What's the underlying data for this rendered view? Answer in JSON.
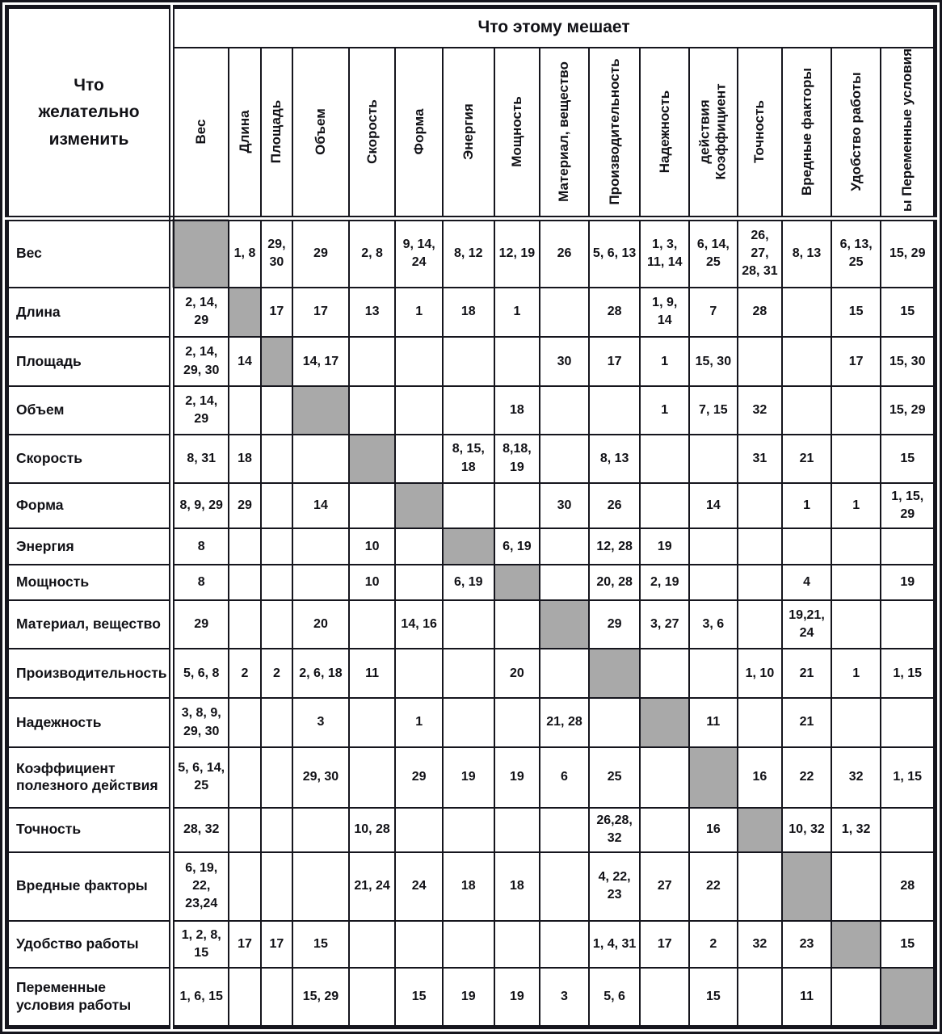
{
  "header": {
    "row_axis_title": "Что желательно изменить",
    "col_axis_title": "Что этому мешает"
  },
  "columns": [
    {
      "label_lines": [
        "Вес"
      ]
    },
    {
      "label_lines": [
        "Длина"
      ]
    },
    {
      "label_lines": [
        "Площадь"
      ]
    },
    {
      "label_lines": [
        "Объем"
      ]
    },
    {
      "label_lines": [
        "Скорость"
      ]
    },
    {
      "label_lines": [
        "Форма"
      ]
    },
    {
      "label_lines": [
        "Энергия"
      ]
    },
    {
      "label_lines": [
        "Мощность"
      ]
    },
    {
      "label_lines": [
        "Материал, вещество"
      ]
    },
    {
      "label_lines": [
        "Производительность"
      ]
    },
    {
      "label_lines": [
        "Надежность"
      ]
    },
    {
      "label_lines": [
        "действия",
        "Коэффициент"
      ]
    },
    {
      "label_lines": [
        "Точность"
      ]
    },
    {
      "label_lines": [
        "Вредные факторы"
      ]
    },
    {
      "label_lines": [
        "Удобство работы"
      ]
    },
    {
      "label_lines": [
        "ы Переменные условия"
      ]
    }
  ],
  "rows": [
    {
      "label": "Вес",
      "cells": [
        "",
        "1, 8",
        "29, 30",
        "29",
        "2, 8",
        "9, 14, 24",
        "8, 12",
        "12, 19",
        "26",
        "5, 6, 13",
        "1, 3, 11, 14",
        "6, 14, 25",
        "26, 27, 28, 31",
        "8, 13",
        "6, 13, 25",
        "15, 29"
      ]
    },
    {
      "label": "Длина",
      "cells": [
        "2, 14, 29",
        "",
        "17",
        "17",
        "13",
        "1",
        "18",
        "1",
        "",
        "28",
        "1, 9, 14",
        "7",
        "28",
        "",
        "15",
        "15"
      ]
    },
    {
      "label": "Площадь",
      "cells": [
        "2, 14, 29, 30",
        "14",
        "",
        "14, 17",
        "",
        "",
        "",
        "",
        "30",
        "17",
        "1",
        "15, 30",
        "",
        "",
        "17",
        "15, 30"
      ]
    },
    {
      "label": "Объем",
      "cells": [
        "2, 14, 29",
        "",
        "",
        "",
        "",
        "",
        "",
        "18",
        "",
        "",
        "1",
        "7, 15",
        "32",
        "",
        "",
        "15, 29"
      ]
    },
    {
      "label": "Скорость",
      "cells": [
        "8, 31",
        "18",
        "",
        "",
        "",
        "",
        "8, 15, 18",
        "8,18, 19",
        "",
        "8, 13",
        "",
        "",
        "31",
        "21",
        "",
        "15"
      ]
    },
    {
      "label": "Форма",
      "cells": [
        "8, 9, 29",
        "29",
        "",
        "14",
        "",
        "",
        "",
        "",
        "30",
        "26",
        "",
        "14",
        "",
        "1",
        "1",
        "1, 15, 29"
      ]
    },
    {
      "label": "Энергия",
      "cells": [
        "8",
        "",
        "",
        "",
        "10",
        "",
        "",
        "6, 19",
        "",
        "12, 28",
        "19",
        "",
        "",
        "",
        "",
        ""
      ]
    },
    {
      "label": "Мощность",
      "cells": [
        "8",
        "",
        "",
        "",
        "10",
        "",
        "6, 19",
        "",
        "",
        "20, 28",
        "2, 19",
        "",
        "",
        "4",
        "",
        "19"
      ]
    },
    {
      "label": "Материал, вещество",
      "cells": [
        "29",
        "",
        "",
        "20",
        "",
        "14, 16",
        "",
        "",
        "",
        "29",
        "3, 27",
        "3, 6",
        "",
        "19,21, 24",
        "",
        ""
      ]
    },
    {
      "label": "Производительность",
      "cells": [
        "5, 6, 8",
        "2",
        "2",
        "2, 6, 18",
        "11",
        "",
        "",
        "20",
        "",
        "",
        "",
        "",
        "1, 10",
        "21",
        "1",
        "1, 15"
      ]
    },
    {
      "label": "Надежность",
      "cells": [
        "3, 8, 9, 29, 30",
        "",
        "",
        "3",
        "",
        "1",
        "",
        "",
        "21, 28",
        "",
        "",
        "11",
        "",
        "21",
        "",
        ""
      ]
    },
    {
      "label": "Коэффициент полезного действия",
      "cells": [
        "5, 6, 14, 25",
        "",
        "",
        "29, 30",
        "",
        "29",
        "19",
        "19",
        "6",
        "25",
        "",
        "",
        "16",
        "22",
        "32",
        "1, 15"
      ]
    },
    {
      "label": "Точность",
      "cells": [
        "28, 32",
        "",
        "",
        "",
        "10, 28",
        "",
        "",
        "",
        "",
        "26,28, 32",
        "",
        "16",
        "",
        "10, 32",
        "1, 32",
        ""
      ]
    },
    {
      "label": "Вредные факторы",
      "cells": [
        "6, 19, 22, 23,24",
        "",
        "",
        "",
        "21, 24",
        "24",
        "18",
        "18",
        "",
        "4, 22, 23",
        "27",
        "22",
        "",
        "",
        "",
        "28"
      ]
    },
    {
      "label": "Удобство работы",
      "cells": [
        "1, 2, 8, 15",
        "17",
        "17",
        "15",
        "",
        "",
        "",
        "",
        "",
        "1, 4, 31",
        "17",
        "2",
        "32",
        "23",
        "",
        "15"
      ]
    },
    {
      "label": "Переменные условия работы",
      "cells": [
        "1, 6, 15",
        "",
        "",
        "15, 29",
        "",
        "15",
        "19",
        "19",
        "3",
        "5, 6",
        "",
        "15",
        "",
        "11",
        "",
        ""
      ]
    }
  ],
  "colors": {
    "diagonal_fill": "#a9a9a9",
    "grid_line": "#15151d",
    "background": "#ffffff"
  }
}
